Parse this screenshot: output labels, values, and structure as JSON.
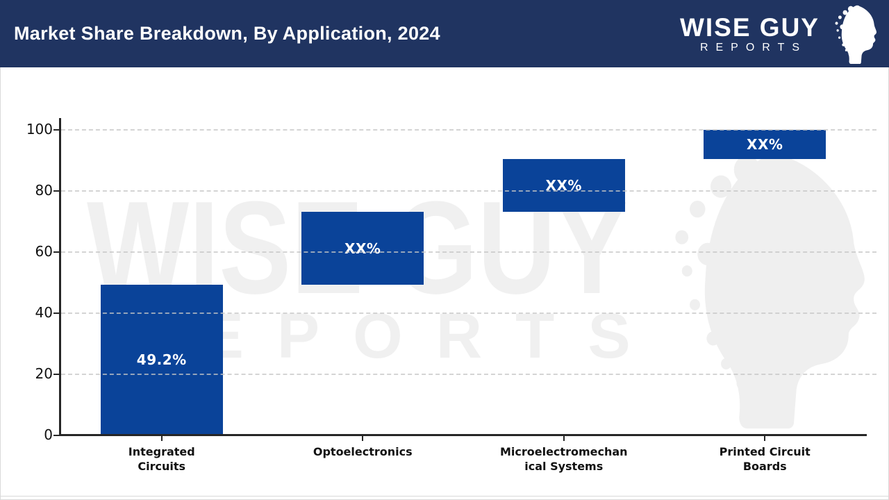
{
  "header": {
    "title": "Market Share Breakdown, By Application, 2024",
    "background_color": "#203461",
    "logo": {
      "line1": "WISE GUY",
      "line2": "REPORTS",
      "icon": "dotted-head-icon"
    }
  },
  "watermark": {
    "line1": "WISE GUY",
    "line2": "REPORTS",
    "icon": "dotted-head-icon"
  },
  "chart_data": {
    "type": "bar",
    "variant": "waterfall",
    "title": "Market Share Breakdown, By Application, 2024",
    "categories": [
      "Integrated Circuits",
      "Optoelectronics",
      "Microelectromechanical Systems",
      "Printed Circuit Boards"
    ],
    "category_label_lines": [
      [
        "Integrated",
        "Circuits"
      ],
      [
        "Optoelectronics"
      ],
      [
        "Microelectromechan",
        "ical Systems"
      ],
      [
        "Printed Circuit",
        "Boards"
      ]
    ],
    "series": [
      {
        "name": "Market share (%)",
        "segments": [
          {
            "category": "Integrated Circuits",
            "start": 0,
            "end": 49.2,
            "label": "49.2%"
          },
          {
            "category": "Optoelectronics",
            "start": 49.2,
            "end": 73.0,
            "label": "XX%"
          },
          {
            "category": "Microelectromechanical Systems",
            "start": 73.0,
            "end": 90.4,
            "label": "XX%"
          },
          {
            "category": "Printed Circuit Boards",
            "start": 90.4,
            "end": 100.0,
            "label": "XX%"
          }
        ]
      }
    ],
    "ylim": [
      0,
      100
    ],
    "yticks": [
      0,
      20,
      40,
      60,
      80,
      100
    ],
    "grid": "horizontal-dashed",
    "legend": "none",
    "bar_color": "#0a4399",
    "bar_label_color": "#ffffff",
    "axis_color": "#262626",
    "tick_label_color": "#111111"
  }
}
